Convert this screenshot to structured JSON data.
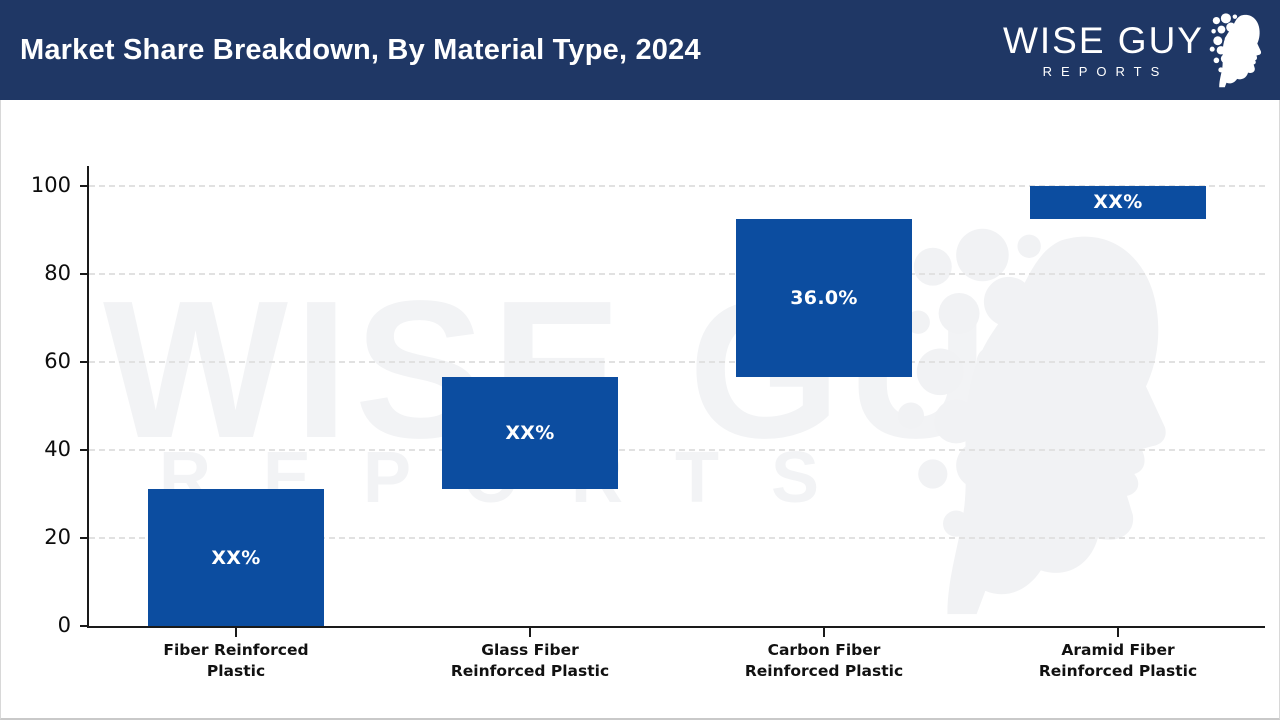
{
  "header": {
    "title": "Market Share Breakdown, By Material Type, 2024",
    "background_color": "#1F3765",
    "logo": {
      "name": "WISE GUY",
      "subtitle": "REPORTS",
      "face_icon": "dotted-head-profile"
    }
  },
  "watermark": {
    "name": "WISE GUY",
    "subtitle": "REPORTS",
    "face_icon": "dotted-head-profile",
    "color": "#f2f3f5"
  },
  "chart_data": {
    "type": "bar",
    "subtype": "floating-segment-waterfall",
    "title": "Market Share Breakdown, By Material Type, 2024",
    "categories": [
      "Fiber Reinforced\nPlastic",
      "Glass Fiber\nReinforced Plastic",
      "Carbon Fiber\nReinforced Plastic",
      "Aramid Fiber\nReinforced Plastic"
    ],
    "segments": [
      {
        "category": "Fiber Reinforced Plastic",
        "start": 0,
        "end": 31,
        "label": "XX%"
      },
      {
        "category": "Glass Fiber Reinforced Plastic",
        "start": 31,
        "end": 56.5,
        "label": "XX%"
      },
      {
        "category": "Carbon Fiber Reinforced Plastic",
        "start": 56.5,
        "end": 92.5,
        "label": "36.0%"
      },
      {
        "category": "Aramid Fiber Reinforced Plastic",
        "start": 92.5,
        "end": 100,
        "label": "XX%"
      }
    ],
    "ylim": [
      0,
      104
    ],
    "yticks": [
      0,
      20,
      40,
      60,
      80,
      100
    ],
    "xlabel": "",
    "ylabel": "",
    "grid": "horizontal-dashed",
    "legend": "none",
    "bar_color": "#0C4DA0",
    "bar_label_color": "#ffffff",
    "axis_color": "#1a1a1a",
    "gridline_color": "#e1e1e1"
  }
}
